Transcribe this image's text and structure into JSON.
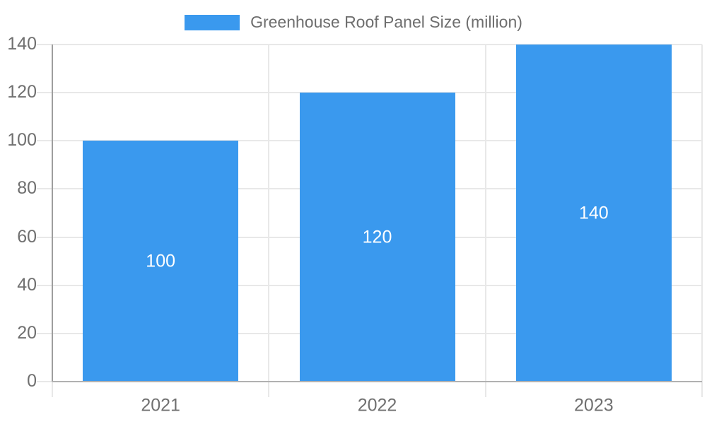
{
  "chart_data": {
    "type": "bar",
    "title": "",
    "legend": {
      "label": "Greenhouse Roof Panel Size (million)",
      "position": "top-center"
    },
    "categories": [
      "2021",
      "2022",
      "2023"
    ],
    "series": [
      {
        "name": "Greenhouse Roof Panel Size (million)",
        "values": [
          100,
          120,
          140
        ]
      }
    ],
    "bar_value_labels": [
      "100",
      "120",
      "140"
    ],
    "xlabel": "",
    "ylabel": "",
    "ylim": [
      0,
      140
    ],
    "ytick_step": 20,
    "ytick_labels": [
      "0",
      "20",
      "40",
      "60",
      "80",
      "100",
      "120",
      "140"
    ],
    "grid": true,
    "colors": {
      "bar": "#3A99EE",
      "grid": "#E8E8E8",
      "axis_y": "#9E9E9E",
      "axis_x": "#B1B1B1",
      "tick_label": "#707070",
      "legend_text": "#6E6E6E",
      "value_label": "#FFFFFF",
      "background": "#FFFFFF"
    }
  }
}
